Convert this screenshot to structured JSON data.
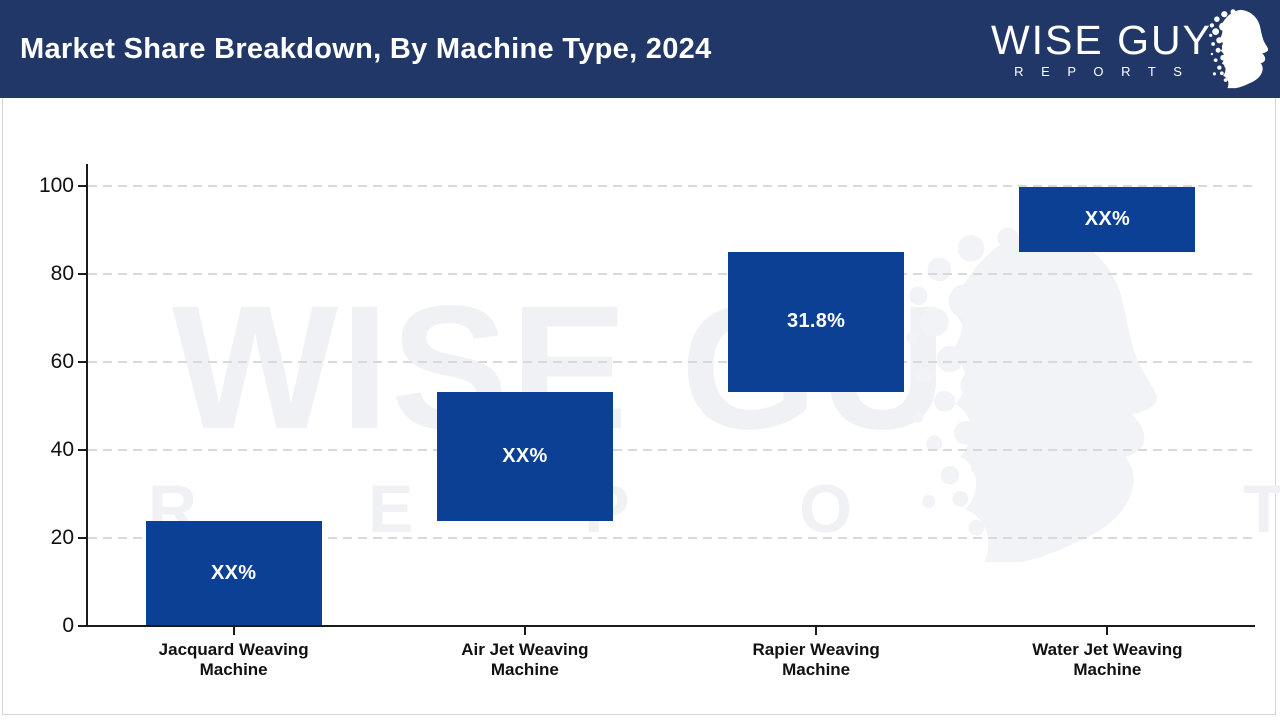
{
  "header": {
    "title": "Market Share Breakdown, By Machine Type, 2024",
    "logo": {
      "line1": "WISE GUY",
      "line2": "R E P O R T S"
    }
  },
  "watermark": {
    "line1": "WISE GUY",
    "line2": "R E P O R T S"
  },
  "colors": {
    "header_bg": "#213767",
    "bar": "#0c4094",
    "bar_label": "#ffffff",
    "gridline": "#d9d9d9",
    "axis": "#1a1a1a",
    "watermark": "#f1f2f5"
  },
  "chart_data": {
    "type": "bar",
    "variant": "waterfall",
    "title": "Market Share Breakdown, By Machine Type, 2024",
    "xlabel": "",
    "ylabel": "",
    "ylim": [
      0,
      100
    ],
    "yticks": [
      0,
      20,
      40,
      60,
      80,
      100
    ],
    "grid": "horizontal-dashed",
    "legend": "none",
    "categories": [
      "Jacquard Weaving\nMachine",
      "Air Jet Weaving\nMachine",
      "Rapier Weaving\nMachine",
      "Water Jet Weaving\nMachine"
    ],
    "bars": [
      {
        "category": "Jacquard Weaving Machine",
        "start": 0,
        "end": 23.9,
        "value": 23.9,
        "label": "XX%"
      },
      {
        "category": "Air Jet Weaving Machine",
        "start": 23.9,
        "end": 53.2,
        "value": 29.3,
        "label": "XX%"
      },
      {
        "category": "Rapier Weaving Machine",
        "start": 53.2,
        "end": 85.0,
        "value": 31.8,
        "label": "31.8%"
      },
      {
        "category": "Water Jet Weaving Machine",
        "start": 85.0,
        "end": 99.7,
        "value": 14.7,
        "label": "XX%"
      }
    ]
  }
}
